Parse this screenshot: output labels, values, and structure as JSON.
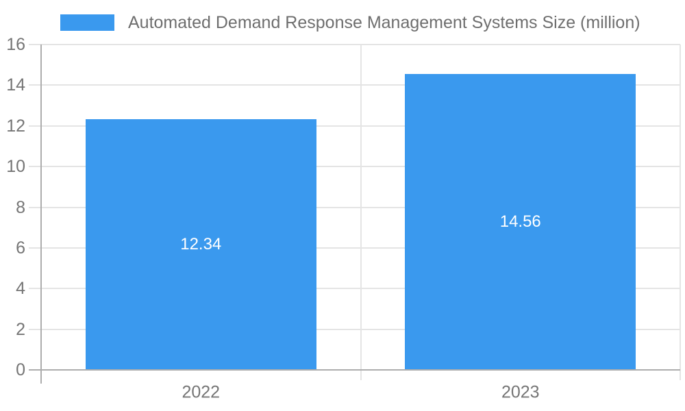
{
  "chart_data": {
    "type": "bar",
    "title": "Automated Demand Response Management Systems Size (million)",
    "legend": {
      "label": "Automated Demand Response Management Systems Size (million)",
      "position": "top"
    },
    "categories": [
      "2022",
      "2023"
    ],
    "values": [
      12.34,
      14.56
    ],
    "value_labels": [
      "12.34",
      "14.56"
    ],
    "xlabel": "",
    "ylabel": "",
    "ylim": [
      0,
      16
    ],
    "ytick_step": 2,
    "yticks": [
      0,
      2,
      4,
      6,
      8,
      10,
      12,
      14,
      16
    ],
    "grid": true,
    "colors": {
      "bar": "#3A99EE",
      "value_label": "#FFFFFF",
      "axis_text": "#757575",
      "legend_text": "#6E6E6E",
      "axis_line": "#ADADAD",
      "gridline": "#E4E4E4"
    }
  }
}
